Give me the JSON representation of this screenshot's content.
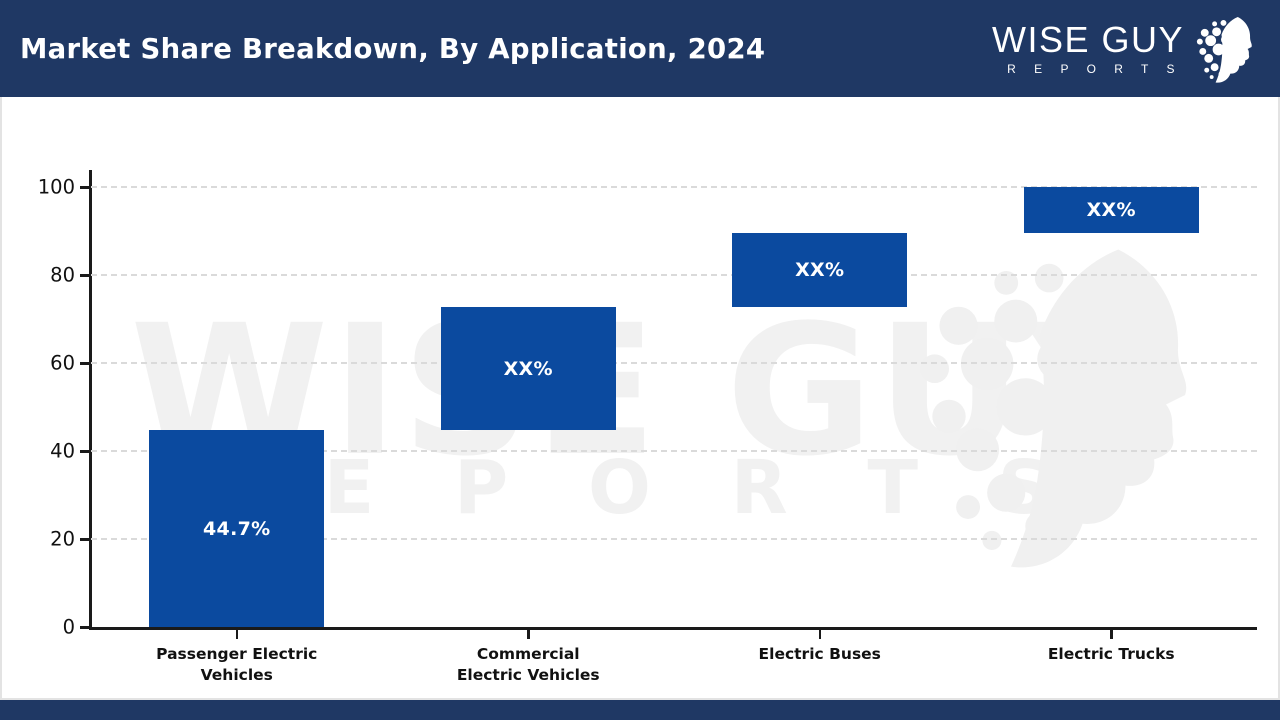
{
  "header": {
    "title": "Market Share Breakdown, By Application, 2024",
    "logo": {
      "line1": "WISE GUY",
      "line2": "R E P O R T S"
    }
  },
  "watermark": {
    "line1": "WISE GUY",
    "line2": "R E P O R T S"
  },
  "chart_data": {
    "type": "bar",
    "subtype": "waterfall",
    "title": "Market Share Breakdown, By Application, 2024",
    "unit": "percent",
    "categories": [
      {
        "lines": [
          "Passenger Electric",
          "Vehicles"
        ]
      },
      {
        "lines": [
          "Commercial",
          "Electric Vehicles"
        ]
      },
      {
        "lines": [
          "Electric Buses"
        ]
      },
      {
        "lines": [
          "Electric Trucks"
        ]
      }
    ],
    "segments": [
      {
        "category": "Passenger Electric Vehicles",
        "start": 0,
        "end": 44.7,
        "label": "44.7%"
      },
      {
        "category": "Commercial Electric Vehicles",
        "start": 44.7,
        "end": 72.8,
        "label": "XX%"
      },
      {
        "category": "Electric Buses",
        "start": 72.8,
        "end": 89.6,
        "label": "XX%"
      },
      {
        "category": "Electric Trucks",
        "start": 89.6,
        "end": 100,
        "label": "XX%"
      }
    ],
    "yticks": [
      0,
      20,
      40,
      60,
      80,
      100
    ],
    "ylim": [
      0,
      103.9
    ],
    "grid": "horizontal-dashed",
    "legend": "none"
  },
  "colors": {
    "header_bg": "#1f3864",
    "footer_bg": "#1f3864",
    "bar": "#0b4a9f",
    "bar_label": "#ffffff",
    "grid": "#dadada",
    "axis": "#1a1a1a",
    "watermark": "#f0f0f0",
    "title_text": "#ffffff",
    "background": "#ffffff"
  }
}
